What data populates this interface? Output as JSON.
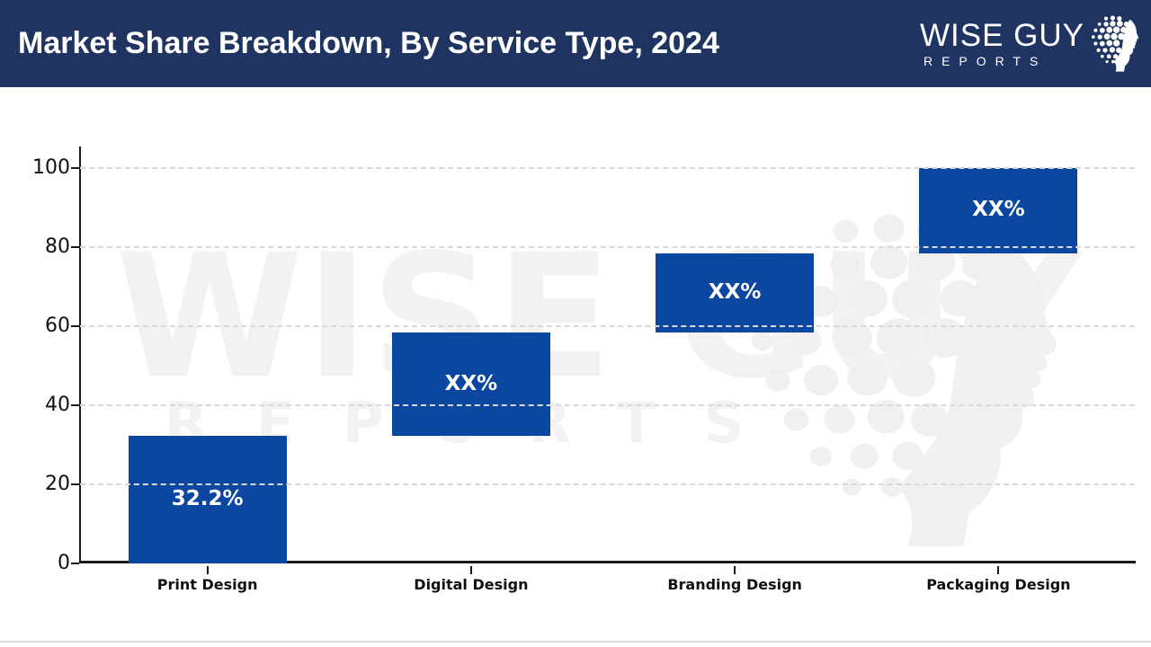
{
  "header": {
    "title": "Market Share Breakdown, By Service Type, 2024",
    "logo_line1": "WISE GUY",
    "logo_line2": "REPORTS"
  },
  "watermark": {
    "line1": "WISE GUY",
    "line2": "REPORTS"
  },
  "chart_data": {
    "type": "bar",
    "subtype": "waterfall",
    "title": "Market Share Breakdown, By Service Type, 2024",
    "categories": [
      "Print Design",
      "Digital Design",
      "Branding Design",
      "Packaging Design"
    ],
    "series": [
      {
        "name": "Market Share (%)",
        "segments": [
          {
            "category": "Print Design",
            "start": 0,
            "end": 32.2,
            "label": "32.2%"
          },
          {
            "category": "Digital Design",
            "start": 32.2,
            "end": 58.4,
            "label": "XX%"
          },
          {
            "category": "Branding Design",
            "start": 58.4,
            "end": 78.5,
            "label": "XX%"
          },
          {
            "category": "Packaging Design",
            "start": 78.5,
            "end": 100,
            "label": "XX%"
          }
        ]
      }
    ],
    "bar_labels": [
      "32.2%",
      "XX%",
      "XX%",
      "XX%"
    ],
    "ylim": [
      0,
      100
    ],
    "yticks": [
      0,
      20,
      40,
      60,
      80,
      100
    ],
    "xlabel": "",
    "ylabel": "",
    "grid": "horizontal-dashed",
    "legend": "none",
    "colors": {
      "bar": "#0b47a1",
      "bar_label": "#ffffff",
      "header_bg": "#203462",
      "header_text": "#ffffff",
      "grid_line": "#d9d9d9",
      "axis": "#1a1a1a",
      "tick_text": "#111111",
      "watermark": "#f2f2f3"
    }
  }
}
